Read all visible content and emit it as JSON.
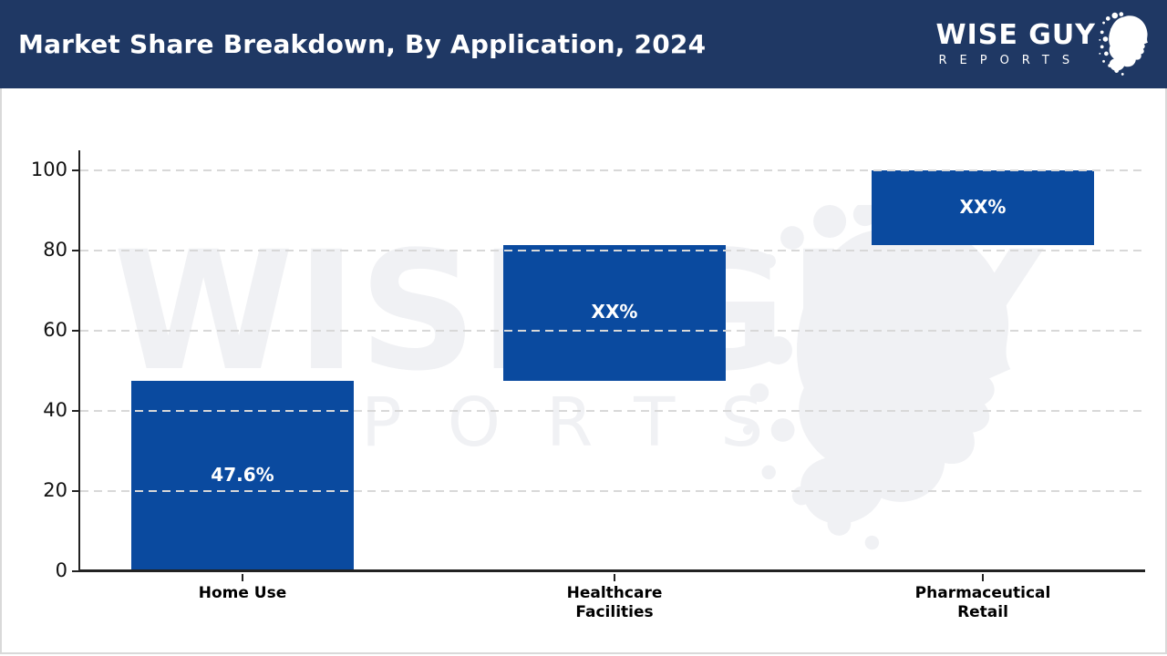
{
  "header": {
    "title": "Market Share Breakdown, By Application, 2024",
    "logo": {
      "name": "WISE GUY",
      "tagline": "REPORTS"
    }
  },
  "watermark": {
    "name": "WISE GUY",
    "tagline": "REPORTS"
  },
  "colors": {
    "header_bg": "#1f3864",
    "bar": "#0a4a9f",
    "bar_label": "#ffffff",
    "grid": "#d8d8d8",
    "axis": "#222222",
    "watermark": "#f0f1f4"
  },
  "chart_data": {
    "type": "bar",
    "variant": "waterfall-floating-segments",
    "title": "Market Share Breakdown, By Application, 2024",
    "xlabel": "",
    "ylabel": "",
    "ylim": [
      0,
      100
    ],
    "yticks": [
      0,
      20,
      40,
      60,
      80,
      100
    ],
    "grid": "horizontal-dashed",
    "legend": "none",
    "categories": [
      "Home Use",
      "Healthcare Facilities",
      "Pharmaceutical Retail"
    ],
    "category_lines": [
      [
        "Home Use"
      ],
      [
        "Healthcare",
        "Facilities"
      ],
      [
        "Pharmaceutical",
        "Retail"
      ]
    ],
    "segments": [
      {
        "category": "Home Use",
        "start": 0,
        "end": 47.6,
        "label": "47.6%"
      },
      {
        "category": "Healthcare Facilities",
        "start": 47.6,
        "end": 81.4,
        "label": "XX%"
      },
      {
        "category": "Pharmaceutical Retail",
        "start": 81.4,
        "end": 100,
        "label": "XX%"
      }
    ]
  }
}
